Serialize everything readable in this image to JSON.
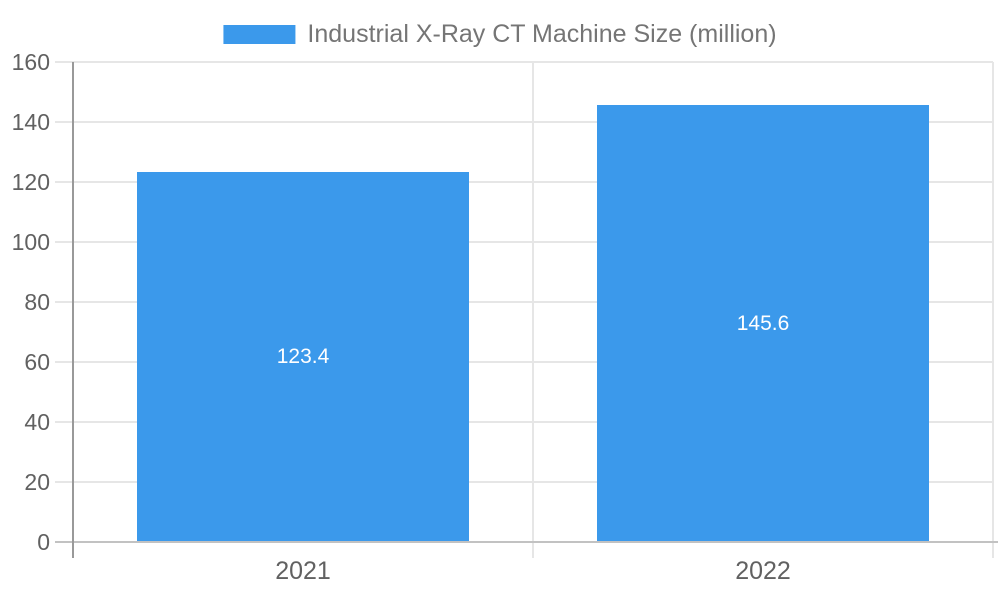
{
  "colors": {
    "bar": "#3B99EB",
    "grid": "#e6e6e6",
    "axis": "#999999",
    "baseline": "#c2c2c2",
    "axis-label": "#616161",
    "legend-text": "#757575",
    "value-label": "#ffffff",
    "background": "#ffffff"
  },
  "legend": {
    "label": "Industrial X-Ray CT Machine Size (million)"
  },
  "chart_data": {
    "type": "bar",
    "title": "Industrial X-Ray CT Machine Size (million)",
    "categories": [
      "2021",
      "2022"
    ],
    "values": [
      123.4,
      145.6
    ],
    "value_labels": [
      "123.4",
      "145.6"
    ],
    "xlabel": "",
    "ylabel": "",
    "ylim": [
      0,
      160
    ],
    "yticks": [
      0,
      20,
      40,
      60,
      80,
      100,
      120,
      140,
      160
    ],
    "grid": true,
    "legend_position": "top"
  }
}
